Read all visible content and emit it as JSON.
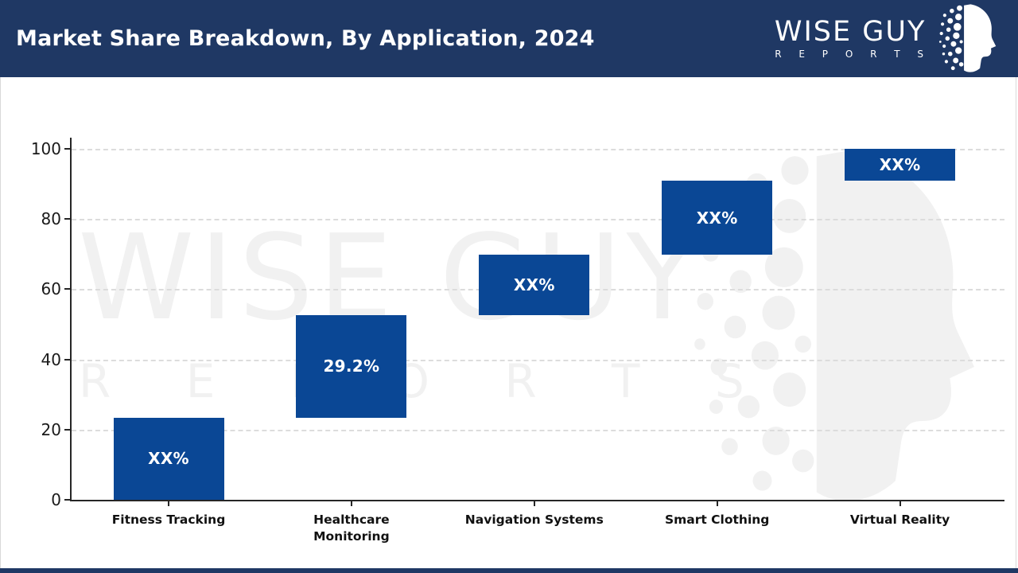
{
  "header": {
    "title": "Market Share Breakdown, By Application, 2024",
    "logo": {
      "name": "WISE GUY",
      "subtitle": "R E P O R T S"
    }
  },
  "watermark": {
    "line1": "WISE GUY",
    "line2": "R E P O R T S"
  },
  "chart_data": {
    "type": "bar",
    "subtype": "waterfall",
    "title": "Market Share Breakdown, By Application, 2024",
    "categories": [
      "Fitness Tracking",
      "Healthcare\nMonitoring",
      "Navigation Systems",
      "Smart Clothing",
      "Virtual Reality"
    ],
    "segments": [
      {
        "category": "Fitness Tracking",
        "start": 0,
        "end": 23.4,
        "label": "XX%"
      },
      {
        "category": "Healthcare Monitoring",
        "start": 23.4,
        "end": 52.6,
        "label": "29.2%"
      },
      {
        "category": "Navigation Systems",
        "start": 52.6,
        "end": 69.8,
        "label": "XX%"
      },
      {
        "category": "Smart Clothing",
        "start": 69.8,
        "end": 90.9,
        "label": "XX%"
      },
      {
        "category": "Virtual Reality",
        "start": 90.9,
        "end": 100,
        "label": "XX%"
      }
    ],
    "yticks": [
      0,
      20,
      40,
      60,
      80,
      100
    ],
    "ylim": [
      0,
      100
    ],
    "xlabel": "",
    "ylabel": "",
    "grid": true,
    "grid_style": "dashed",
    "legend": false,
    "bar_color": "#0a4795"
  },
  "colors": {
    "header_bg": "#1f3864",
    "footer_bg": "#1f3864",
    "bar": "#0a4795",
    "grid": "#dcdcdc",
    "axis": "#262626",
    "watermark": "#f1f1f1",
    "title_text": "#ffffff"
  }
}
